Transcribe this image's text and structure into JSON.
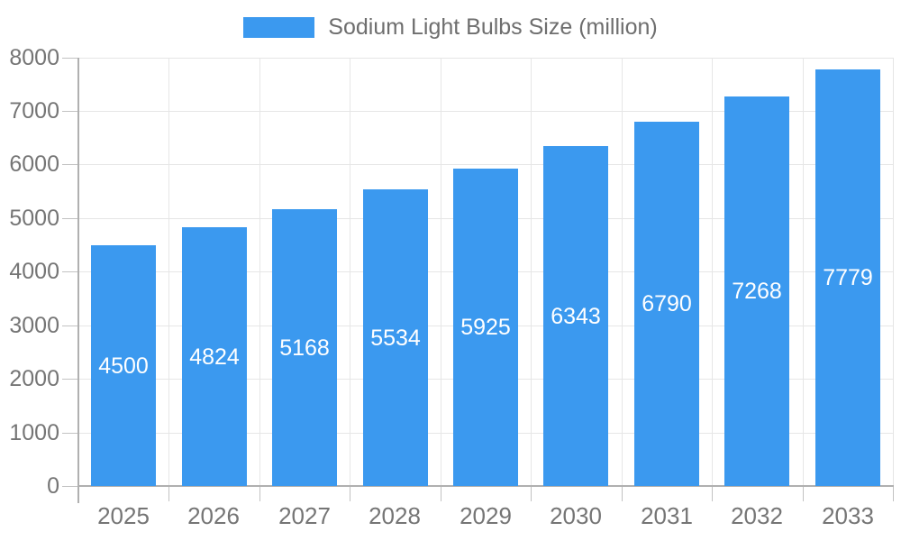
{
  "chart_data": {
    "type": "bar",
    "title": "Sodium Light Bulbs Size (million)",
    "legend": {
      "position": "top",
      "label": "Sodium Light Bulbs Size (million)"
    },
    "categories": [
      "2025",
      "2026",
      "2027",
      "2028",
      "2029",
      "2030",
      "2031",
      "2032",
      "2033"
    ],
    "values": [
      4500,
      4824,
      5168,
      5534,
      5925,
      6343,
      6790,
      7268,
      7779
    ],
    "series": [
      {
        "name": "Sodium Light Bulbs Size (million)",
        "values": [
          4500,
          4824,
          5168,
          5534,
          5925,
          6343,
          6790,
          7268,
          7779
        ]
      }
    ],
    "xlabel": "",
    "ylabel": "",
    "ylim": [
      0,
      8000
    ],
    "y_tick_step": 1000,
    "y_tick_labels": [
      "0",
      "1000",
      "2000",
      "3000",
      "4000",
      "5000",
      "6000",
      "7000",
      "8000"
    ],
    "grid": true,
    "value_labels_inside_bars": true,
    "colors": {
      "bar_fill": "#3B99EF",
      "value_label_text": "#FFFFFF",
      "axis_label_text": "#757575",
      "legend_text": "#6E6E6E",
      "grid_line": "#E6E6E6",
      "axis_line": "#B0B0B0",
      "tick_mark": "#C2C2C2",
      "background": "#FFFFFF"
    }
  }
}
